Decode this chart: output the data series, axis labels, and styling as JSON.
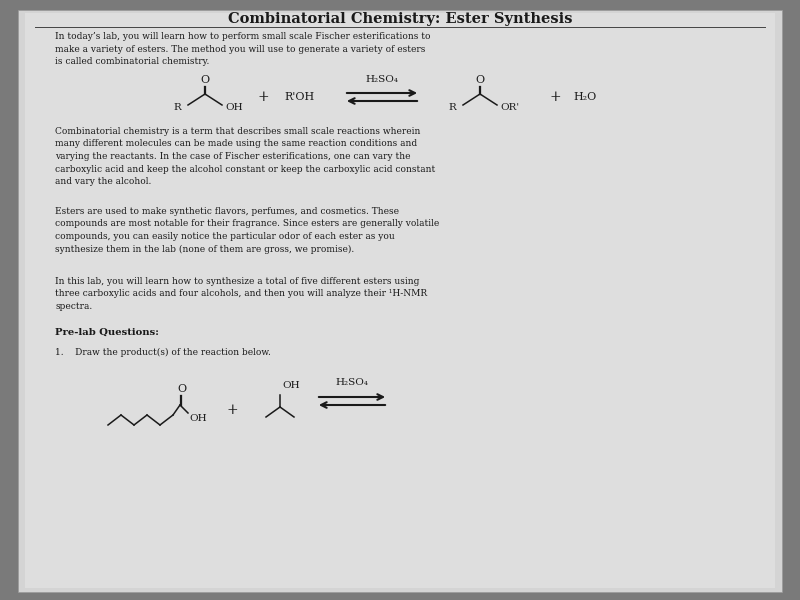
{
  "title": "Combinatorial Chemistry: Ester Synthesis",
  "outer_bg": "#7a7a7a",
  "page_bg": "#d8d8d8",
  "text_color": "#1a1a1a",
  "intro_text": "In today’s lab, you will learn how to perform small scale Fischer esterifications to\nmake a variety of esters. The method you will use to generate a variety of esters\nis called combinatorial chemistry.",
  "para1": "Combinatorial chemistry is a term that describes small scale reactions wherein\nmany different molecules can be made using the same reaction conditions and\nvarying the reactants. In the case of Fischer esterifications, one can vary the\ncarboxylic acid and keep the alcohol constant or keep the carboxylic acid constant\nand vary the alcohol.",
  "para2": "Esters are used to make synthetic flavors, perfumes, and cosmetics. These\ncompounds are most notable for their fragrance. Since esters are generally volatile\ncompounds, you can easily notice the particular odor of each ester as you\nsynthesize them in the lab (none of them are gross, we promise).",
  "para3": "In this lab, you will learn how to synthesize a total of five different esters using\nthree carboxylic acids and four alcohols, and then you will analyze their ¹H-NMR\nspectra.",
  "prelab_title": "Pre-lab Questions:",
  "question1": "1.    Draw the product(s) of the reaction below."
}
